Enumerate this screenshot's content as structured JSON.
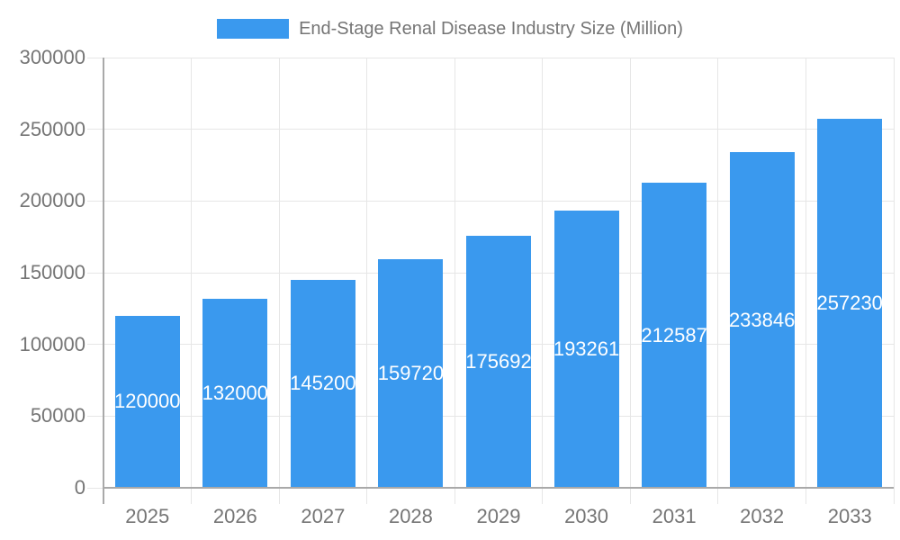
{
  "legend": {
    "label": "End-Stage Renal Disease Industry Size (Million)"
  },
  "colors": {
    "bar": "#3A99EE",
    "axis_line": "#A9A9A9",
    "gridline": "#E6E6E6",
    "tick_text": "#757575",
    "value_label_text": "#FFFFFF",
    "background": "#FFFFFF"
  },
  "chart_data": {
    "type": "bar",
    "title": "",
    "legend_label": "End-Stage Renal Disease Industry Size (Million)",
    "legend_position": "top",
    "series": [
      {
        "name": "End-Stage Renal Disease Industry Size (Million)",
        "values": [
          120000,
          132000,
          145200,
          159720,
          175692,
          193261,
          212587,
          233846,
          257230
        ]
      }
    ],
    "categories": [
      "2025",
      "2026",
      "2027",
      "2028",
      "2029",
      "2030",
      "2031",
      "2032",
      "2033"
    ],
    "value_labels": [
      "120000",
      "132000",
      "145200",
      "159720",
      "175692",
      "193261",
      "212587",
      "233846",
      "257230"
    ],
    "xlabel": "",
    "ylabel": "",
    "ylim": [
      0,
      300000
    ],
    "y_tick_values": [
      0,
      50000,
      100000,
      150000,
      200000,
      250000,
      300000
    ],
    "y_tick_labels": [
      "0",
      "50000",
      "100000",
      "150000",
      "200000",
      "250000",
      "300000"
    ],
    "grid": true,
    "bar_color": "#3A99EE"
  }
}
